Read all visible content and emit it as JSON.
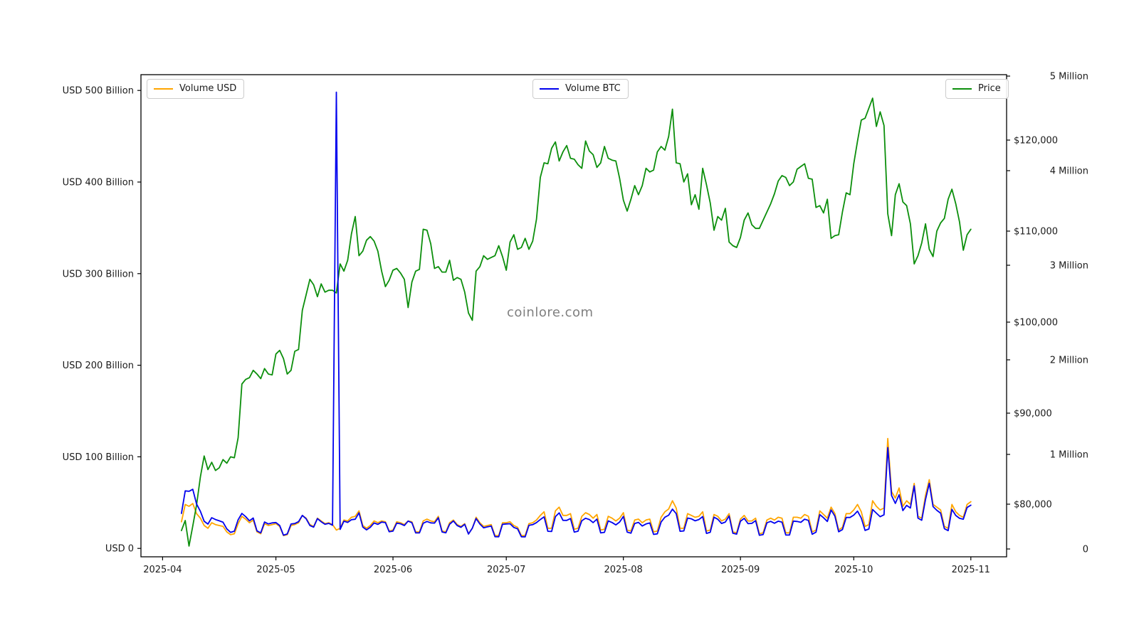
{
  "watermark": "coinlore.com",
  "legend": {
    "volume_usd_label": "Volume USD",
    "volume_btc_label": "Volume BTC",
    "price_label": "Price"
  },
  "chart_data": {
    "type": "line",
    "title": "",
    "grid": false,
    "x": {
      "start_date": "2025-04-06",
      "interval": "daily",
      "count": 210,
      "tick_labels": [
        "2025-04",
        "2025-05",
        "2025-06",
        "2025-07",
        "2025-08",
        "2025-09",
        "2025-10",
        "2025-11"
      ]
    },
    "axes": {
      "left_volume_usd": {
        "unit": "USD Billion",
        "tick_values": [
          0,
          100,
          200,
          300,
          400,
          500
        ],
        "tick_labels": [
          "USD 0",
          "USD 100 Billion",
          "USD 200 Billion",
          "USD 300 Billion",
          "USD 400 Billion",
          "USD 500 Billion"
        ]
      },
      "right_price": {
        "unit": "USD",
        "tick_values": [
          80000,
          90000,
          100000,
          110000,
          120000
        ],
        "tick_labels": [
          "$80,000",
          "$90,000",
          "$100,000",
          "$110,000",
          "$120,000"
        ]
      },
      "right_volume_btc": {
        "unit": "BTC Million",
        "tick_values": [
          0,
          1,
          2,
          3,
          4,
          5
        ],
        "tick_labels": [
          "0",
          "1 Million",
          "2 Million",
          "3 Million",
          "4 Million",
          "5 Million"
        ]
      }
    },
    "series": [
      {
        "name": "Volume USD",
        "color": "#FFA500",
        "axis": "left_volume_usd",
        "values": [
          29,
          48,
          46,
          49,
          38,
          33,
          25,
          22,
          28,
          26,
          25,
          24,
          18,
          15,
          16,
          27,
          35,
          32,
          28,
          31,
          18,
          16,
          27,
          25,
          26,
          27,
          24,
          14,
          15,
          25,
          26,
          28,
          36,
          33,
          26,
          24,
          33,
          30,
          27,
          28,
          26,
          20,
          22,
          31,
          30,
          34,
          35,
          41,
          25,
          22,
          25,
          30,
          28,
          30,
          29,
          19,
          20,
          29,
          28,
          26,
          30,
          29,
          18,
          18,
          30,
          32,
          30,
          29,
          35,
          19,
          18,
          28,
          31,
          26,
          24,
          27,
          16,
          22,
          34,
          28,
          24,
          25,
          26,
          14,
          14,
          28,
          28,
          29,
          25,
          23,
          14,
          14,
          27,
          28,
          31,
          36,
          40,
          22,
          22,
          41,
          45,
          36,
          36,
          38,
          21,
          22,
          35,
          39,
          37,
          33,
          37,
          20,
          21,
          35,
          33,
          30,
          33,
          39,
          20,
          19,
          31,
          32,
          28,
          31,
          32,
          18,
          19,
          34,
          40,
          43,
          52,
          44,
          22,
          22,
          38,
          36,
          34,
          35,
          40,
          19,
          20,
          37,
          35,
          30,
          32,
          38,
          18,
          17,
          32,
          36,
          30,
          30,
          33,
          16,
          17,
          31,
          33,
          31,
          34,
          33,
          17,
          17,
          34,
          34,
          33,
          37,
          35,
          18,
          20,
          41,
          37,
          33,
          45,
          38,
          20,
          23,
          38,
          38,
          42,
          48,
          40,
          24,
          26,
          52,
          46,
          42,
          44,
          120,
          62,
          55,
          66,
          46,
          52,
          48,
          71,
          35,
          33,
          58,
          75,
          48,
          45,
          42,
          24,
          22,
          48,
          40,
          36,
          34,
          48,
          51
        ]
      },
      {
        "name": "Volume BTC",
        "color": "#0000EE",
        "axis": "right_volume_btc",
        "values": [
          0.376,
          0.614,
          0.61,
          0.631,
          0.476,
          0.398,
          0.293,
          0.263,
          0.331,
          0.311,
          0.298,
          0.283,
          0.213,
          0.176,
          0.188,
          0.309,
          0.376,
          0.342,
          0.298,
          0.327,
          0.191,
          0.171,
          0.285,
          0.265,
          0.276,
          0.28,
          0.248,
          0.146,
          0.159,
          0.264,
          0.269,
          0.289,
          0.355,
          0.32,
          0.248,
          0.231,
          0.321,
          0.288,
          0.261,
          0.271,
          0.251,
          4.83,
          0.207,
          0.294,
          0.281,
          0.31,
          0.314,
          0.382,
          0.232,
          0.202,
          0.229,
          0.275,
          0.26,
          0.284,
          0.279,
          0.182,
          0.189,
          0.274,
          0.266,
          0.248,
          0.295,
          0.278,
          0.17,
          0.17,
          0.272,
          0.291,
          0.276,
          0.274,
          0.33,
          0.18,
          0.171,
          0.262,
          0.296,
          0.248,
          0.229,
          0.261,
          0.158,
          0.22,
          0.322,
          0.264,
          0.224,
          0.234,
          0.243,
          0.13,
          0.129,
          0.261,
          0.265,
          0.267,
          0.228,
          0.213,
          0.129,
          0.128,
          0.25,
          0.257,
          0.279,
          0.311,
          0.34,
          0.187,
          0.185,
          0.342,
          0.382,
          0.303,
          0.302,
          0.322,
          0.178,
          0.188,
          0.299,
          0.325,
          0.311,
          0.279,
          0.316,
          0.17,
          0.176,
          0.297,
          0.28,
          0.255,
          0.285,
          0.344,
          0.178,
          0.167,
          0.27,
          0.281,
          0.243,
          0.265,
          0.275,
          0.154,
          0.16,
          0.285,
          0.336,
          0.357,
          0.421,
          0.374,
          0.187,
          0.191,
          0.327,
          0.319,
          0.298,
          0.311,
          0.342,
          0.165,
          0.177,
          0.336,
          0.314,
          0.27,
          0.284,
          0.349,
          0.166,
          0.157,
          0.293,
          0.324,
          0.268,
          0.271,
          0.299,
          0.145,
          0.153,
          0.277,
          0.292,
          0.272,
          0.294,
          0.284,
          0.147,
          0.148,
          0.295,
          0.291,
          0.282,
          0.315,
          0.302,
          0.156,
          0.178,
          0.363,
          0.33,
          0.291,
          0.412,
          0.347,
          0.182,
          0.205,
          0.333,
          0.333,
          0.358,
          0.4,
          0.327,
          0.196,
          0.211,
          0.417,
          0.379,
          0.341,
          0.362,
          1.072,
          0.566,
          0.482,
          0.573,
          0.406,
          0.461,
          0.433,
          0.667,
          0.326,
          0.304,
          0.523,
          0.694,
          0.448,
          0.409,
          0.379,
          0.215,
          0.194,
          0.419,
          0.354,
          0.324,
          0.315,
          0.438,
          0.463
        ]
      },
      {
        "name": "Price",
        "color": "#0C8F0C",
        "axis": "right_price",
        "values": [
          77100,
          78200,
          75400,
          77600,
          79900,
          83000,
          85300,
          83800,
          84600,
          83700,
          84000,
          84900,
          84500,
          85200,
          85100,
          87300,
          93200,
          93700,
          93900,
          94700,
          94300,
          93800,
          94900,
          94300,
          94200,
          96500,
          96900,
          96000,
          94300,
          94700,
          96800,
          97000,
          101300,
          103000,
          104700,
          104100,
          102800,
          104200,
          103300,
          103500,
          103500,
          103200,
          106400,
          105600,
          106800,
          109700,
          111600,
          107300,
          107800,
          109000,
          109400,
          108900,
          107800,
          105600,
          103900,
          104600,
          105700,
          105900,
          105400,
          104700,
          101600,
          104400,
          105600,
          105800,
          110200,
          110100,
          108600,
          105900,
          106100,
          105500,
          105500,
          106800,
          104600,
          104900,
          104700,
          103300,
          101000,
          100200,
          105600,
          106100,
          107300,
          106900,
          107100,
          107300,
          108400,
          107200,
          105700,
          108800,
          109600,
          108000,
          108200,
          109200,
          108000,
          108900,
          111300,
          115900,
          117500,
          117400,
          119100,
          119800,
          117700,
          118700,
          119400,
          118000,
          117900,
          117300,
          116900,
          119900,
          118800,
          118400,
          117000,
          117500,
          119300,
          118000,
          117800,
          117700,
          115800,
          113400,
          112200,
          113500,
          115000,
          114000,
          115000,
          116900,
          116500,
          116700,
          118700,
          119300,
          118900,
          120400,
          123400,
          117500,
          117400,
          115400,
          116300,
          112900,
          114000,
          112400,
          116900,
          115100,
          113100,
          110100,
          111600,
          111200,
          112500,
          108800,
          108400,
          108200,
          109300,
          111200,
          112000,
          110700,
          110300,
          110300,
          111200,
          112100,
          113000,
          114100,
          115500,
          116100,
          115900,
          115000,
          115400,
          116800,
          117100,
          117400,
          115800,
          115700,
          112600,
          112800,
          112000,
          113500,
          109200,
          109500,
          109600,
          112100,
          114200,
          114000,
          117400,
          119900,
          122200,
          122400,
          123500,
          124600,
          121500,
          123100,
          121600,
          111900,
          109500,
          114000,
          115200,
          113200,
          112800,
          110800,
          106400,
          107300,
          108700,
          110800,
          108000,
          107200,
          110000,
          110900,
          111400,
          113500,
          114600,
          113000,
          111000,
          107900,
          109600,
          110200
        ]
      }
    ]
  }
}
